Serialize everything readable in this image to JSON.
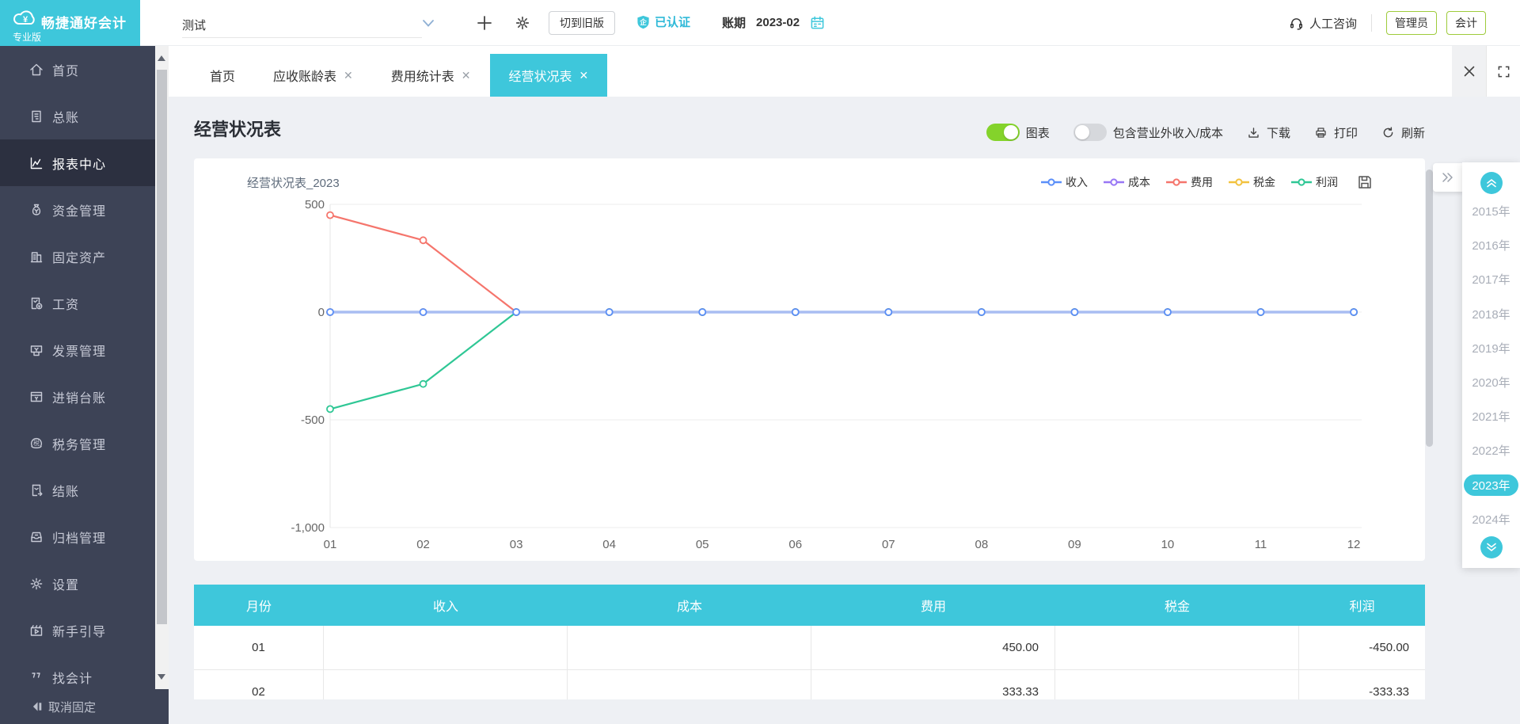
{
  "topbar": {
    "logo_title": "畅捷通好会计",
    "logo_subtitle": "专业版",
    "account_name": "测试",
    "switch_old_label": "切到旧版",
    "certified_label": "已认证",
    "period_label": "账期",
    "period_value": "2023-02",
    "support_label": "人工咨询",
    "role_badges": [
      "管理员",
      "会计"
    ]
  },
  "sidebar": {
    "items": [
      {
        "label": "首页",
        "icon": "home-icon",
        "active": false
      },
      {
        "label": "总账",
        "icon": "ledger-icon",
        "active": false
      },
      {
        "label": "报表中心",
        "icon": "report-center-icon",
        "active": true
      },
      {
        "label": "资金管理",
        "icon": "funds-icon",
        "active": false
      },
      {
        "label": "固定资产",
        "icon": "fixed-assets-icon",
        "active": false
      },
      {
        "label": "工资",
        "icon": "salary-icon",
        "active": false
      },
      {
        "label": "发票管理",
        "icon": "invoice-icon",
        "active": false
      },
      {
        "label": "进销台账",
        "icon": "inventory-ledger-icon",
        "active": false
      },
      {
        "label": "税务管理",
        "icon": "tax-icon",
        "active": false
      },
      {
        "label": "结账",
        "icon": "closing-icon",
        "active": false
      },
      {
        "label": "归档管理",
        "icon": "archive-icon",
        "active": false
      },
      {
        "label": "设置",
        "icon": "settings-icon",
        "active": false
      },
      {
        "label": "新手引导",
        "icon": "guide-icon",
        "active": false
      },
      {
        "label": "找会计",
        "icon": "referral-icon",
        "active": false
      }
    ],
    "unpin_label": "取消固定"
  },
  "tabs": [
    {
      "label": "首页",
      "closable": false,
      "active": false
    },
    {
      "label": "应收账龄表",
      "closable": true,
      "active": false
    },
    {
      "label": "费用统计表",
      "closable": true,
      "active": false
    },
    {
      "label": "经营状况表",
      "closable": true,
      "active": true
    }
  ],
  "page": {
    "title": "经营状况表",
    "chart_toggle_label": "图表",
    "chart_toggle_on": true,
    "include_toggle_label": "包含营业外收入/成本",
    "include_toggle_on": false,
    "download_label": "下载",
    "print_label": "打印",
    "refresh_label": "刷新"
  },
  "chart_data": {
    "type": "line",
    "title": "经营状况表_2023",
    "categories": [
      "01",
      "02",
      "03",
      "04",
      "05",
      "06",
      "07",
      "08",
      "09",
      "10",
      "11",
      "12"
    ],
    "series": [
      {
        "name": "收入",
        "color": "#5b8ff9",
        "line_color": "#a9bdf2",
        "values": [
          0,
          0,
          0,
          0,
          0,
          0,
          0,
          0,
          0,
          0,
          0,
          0
        ]
      },
      {
        "name": "成本",
        "color": "#9877f5",
        "values": [
          0,
          0,
          0,
          0,
          0,
          0,
          0,
          0,
          0,
          0,
          0,
          0
        ]
      },
      {
        "name": "费用",
        "color": "#f5756c",
        "values": [
          450,
          333.33,
          0,
          0,
          0,
          0,
          0,
          0,
          0,
          0,
          0,
          0
        ]
      },
      {
        "name": "税金",
        "color": "#f2c23e",
        "values": [
          0,
          0,
          0,
          0,
          0,
          0,
          0,
          0,
          0,
          0,
          0,
          0
        ]
      },
      {
        "name": "利润",
        "color": "#2fc795",
        "values": [
          -450,
          -333.33,
          0,
          0,
          0,
          0,
          0,
          0,
          0,
          0,
          0,
          0
        ]
      }
    ],
    "ylim": [
      -1000,
      500
    ],
    "yticks": [
      500,
      0,
      -500,
      -1000
    ],
    "ytick_labels": [
      "500",
      "0",
      "-500",
      "-1,000"
    ],
    "grid": true,
    "legend_position": "top-right"
  },
  "table": {
    "columns": [
      "月份",
      "收入",
      "成本",
      "费用",
      "税金",
      "利润"
    ],
    "rows": [
      [
        "01",
        "",
        "",
        "450.00",
        "",
        "-450.00"
      ],
      [
        "02",
        "",
        "",
        "333.33",
        "",
        "-333.33"
      ]
    ]
  },
  "year_panel": {
    "years": [
      "2015年",
      "2016年",
      "2017年",
      "2018年",
      "2019年",
      "2020年",
      "2021年",
      "2022年",
      "2023年",
      "2024年"
    ],
    "selected": "2023年"
  },
  "colors": {
    "brand": "#3ec7db",
    "sidebar_bg": "#3d4356",
    "sidebar_active_bg": "#2c3040",
    "toggle_on": "#84d32b",
    "badge_border": "#9ecb3b",
    "zero_line": "#a9bdf2"
  }
}
